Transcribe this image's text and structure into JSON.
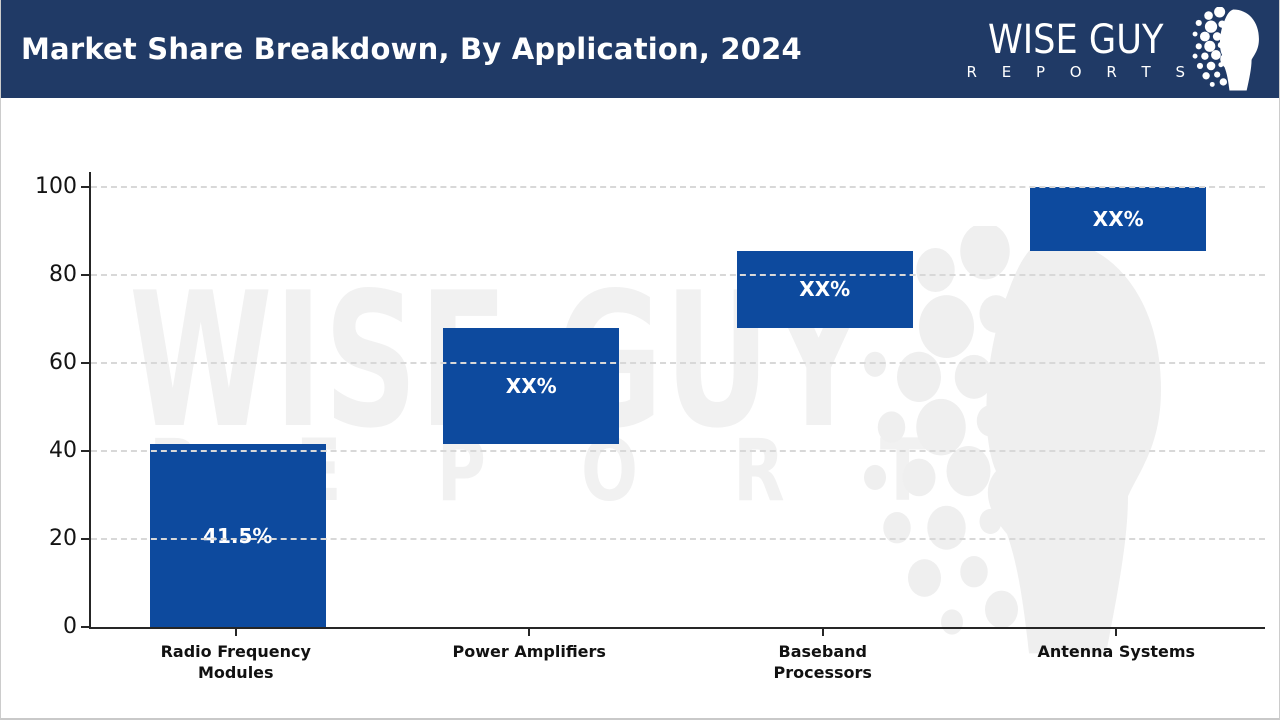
{
  "header": {
    "title": "Market Share Breakdown, By Application, 2024",
    "logo": {
      "name": "WISE GUY",
      "sub": "R E P O R T S",
      "face_icon": "dotted-head-profile-icon"
    }
  },
  "watermark": {
    "line1": "WISE GUY",
    "line2": "R E P O R T S",
    "face_icon": "dotted-head-profile-icon"
  },
  "colors": {
    "header_bg": "#203A66",
    "bar": "#0D4A9E",
    "bar_label": "#FFFFFF",
    "grid": "#D8D8D8",
    "axis": "#262626",
    "tick_text": "#141414",
    "watermark": "#F1F1F1"
  },
  "chart_data": {
    "type": "bar",
    "subtype": "stacked-waterfall",
    "title": "Market Share Breakdown, By Application, 2024",
    "categories": [
      "Radio Frequency Modules",
      "Power Amplifiers",
      "Baseband Processors",
      "Antenna Systems"
    ],
    "category_lines": [
      [
        "Radio Frequency",
        "Modules"
      ],
      [
        "Power Amplifiers"
      ],
      [
        "Baseband",
        "Processors"
      ],
      [
        "Antenna Systems"
      ]
    ],
    "segments": [
      {
        "category": "Radio Frequency Modules",
        "start": 0,
        "end": 41.5,
        "label": "41.5%"
      },
      {
        "category": "Power Amplifiers",
        "start": 41.5,
        "end": 68,
        "label": "XX%"
      },
      {
        "category": "Baseband Processors",
        "start": 68,
        "end": 85.5,
        "label": "XX%"
      },
      {
        "category": "Antenna Systems",
        "start": 85.5,
        "end": 100,
        "label": "XX%"
      }
    ],
    "ylim": [
      0,
      100
    ],
    "yticks": [
      0,
      20,
      40,
      60,
      80,
      100
    ],
    "xlabel": "",
    "ylabel": "",
    "grid": "horizontal-dashed",
    "legend": "none"
  }
}
